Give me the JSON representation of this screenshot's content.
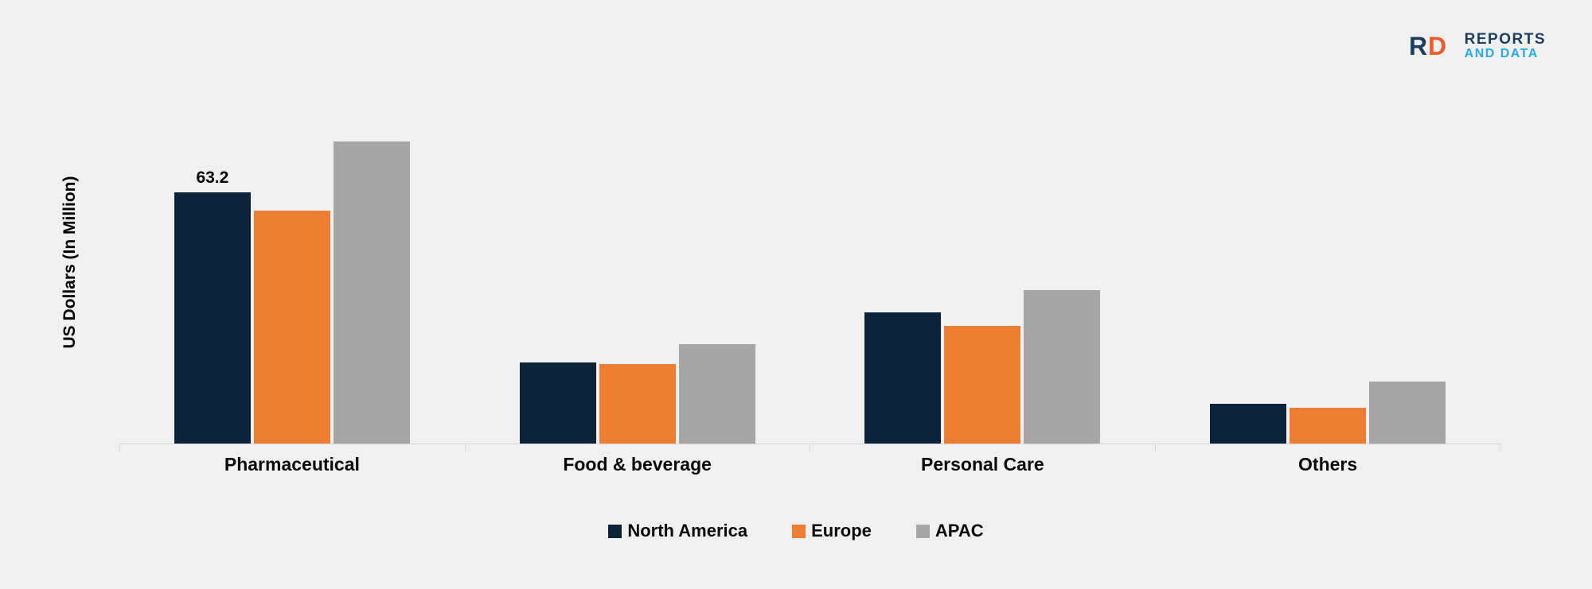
{
  "logo": {
    "mark": "RD",
    "brand_top": "REPORTS",
    "brand_bottom": "AND DATA",
    "mark_color_r": "#1d3e5e",
    "mark_color_d": "#f05a28"
  },
  "chart_data": {
    "type": "bar",
    "title": "",
    "xlabel": "",
    "ylabel": "US Dollars (In Million)",
    "ylim": [
      0,
      80
    ],
    "grid": false,
    "legend_position": "bottom",
    "categories": [
      "Pharmaceutical",
      "Food & beverage",
      "Personal Care",
      "Others"
    ],
    "series": [
      {
        "name": "North America",
        "color": "#0b2239",
        "values": [
          63.2,
          20.5,
          33,
          10
        ]
      },
      {
        "name": "Europe",
        "color": "#ed7d31",
        "values": [
          58.5,
          20,
          29.5,
          9
        ]
      },
      {
        "name": "APAC",
        "color": "#a6a6a6",
        "values": [
          76,
          25,
          38.5,
          15.5
        ]
      }
    ],
    "data_labels": [
      {
        "series": "North America",
        "category": "Pharmaceutical",
        "text": "63.2"
      }
    ],
    "axis_color": "#d6d6d6"
  }
}
